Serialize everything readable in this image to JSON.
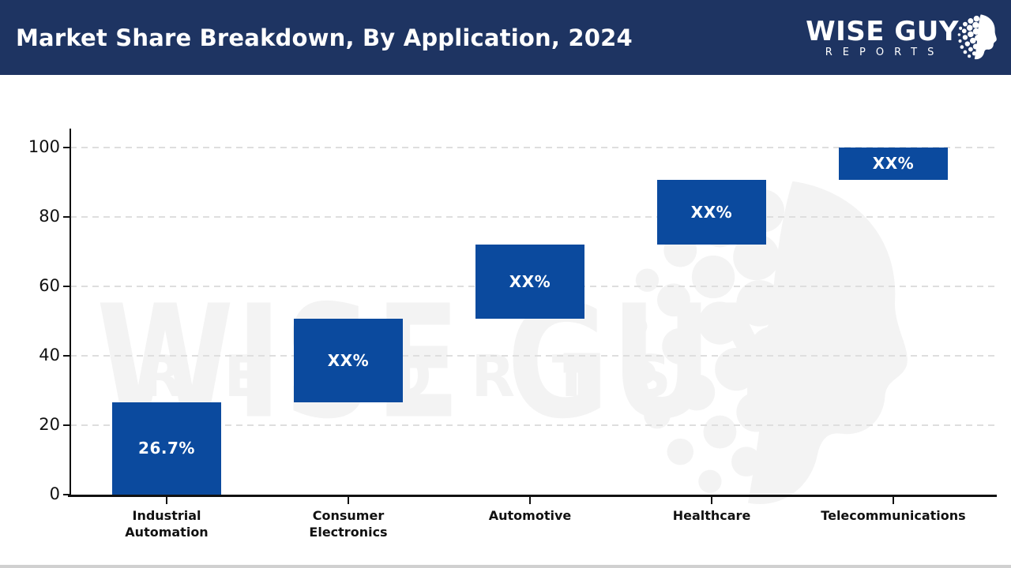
{
  "header": {
    "title": "Market Share Breakdown, By Application, 2024",
    "logo": {
      "name": "WISE GUY",
      "tagline": "REPORTS"
    }
  },
  "watermark": {
    "line1": "WISE GUY",
    "line2": "REPORTS"
  },
  "colors": {
    "header_bg": "#1e3462",
    "bar": "#0b4a9e",
    "grid": "#dedede",
    "axis": "#111111",
    "watermark": "#f3f3f3",
    "footer_line": "#d0d0d0",
    "title_text": "#ffffff",
    "bar_label_text": "#ffffff"
  },
  "chart_data": {
    "type": "bar",
    "subtype": "waterfall",
    "title": "Market Share Breakdown, By Application, 2024",
    "categories": [
      "Industrial Automation",
      "Consumer Electronics",
      "Automotive",
      "Healthcare",
      "Telecommunications"
    ],
    "category_lines": [
      [
        "Industrial",
        "Automation"
      ],
      [
        "Consumer",
        "Electronics"
      ],
      [
        "Automotive"
      ],
      [
        "Healthcare"
      ],
      [
        "Telecommunications"
      ]
    ],
    "segments": [
      {
        "category": "Industrial Automation",
        "start": 0,
        "end": 26.7,
        "label": "26.7%"
      },
      {
        "category": "Consumer Electronics",
        "start": 26.7,
        "end": 50.7,
        "label": "XX%"
      },
      {
        "category": "Automotive",
        "start": 50.7,
        "end": 72.0,
        "label": "XX%"
      },
      {
        "category": "Healthcare",
        "start": 72.0,
        "end": 90.7,
        "label": "XX%"
      },
      {
        "category": "Telecommunications",
        "start": 90.7,
        "end": 100,
        "label": "XX%"
      }
    ],
    "ylim": [
      0,
      100
    ],
    "yticks": [
      0,
      20,
      40,
      60,
      80,
      100
    ],
    "xlabel": "",
    "ylabel": "",
    "grid": "dashed horizontal",
    "legend": "none"
  }
}
